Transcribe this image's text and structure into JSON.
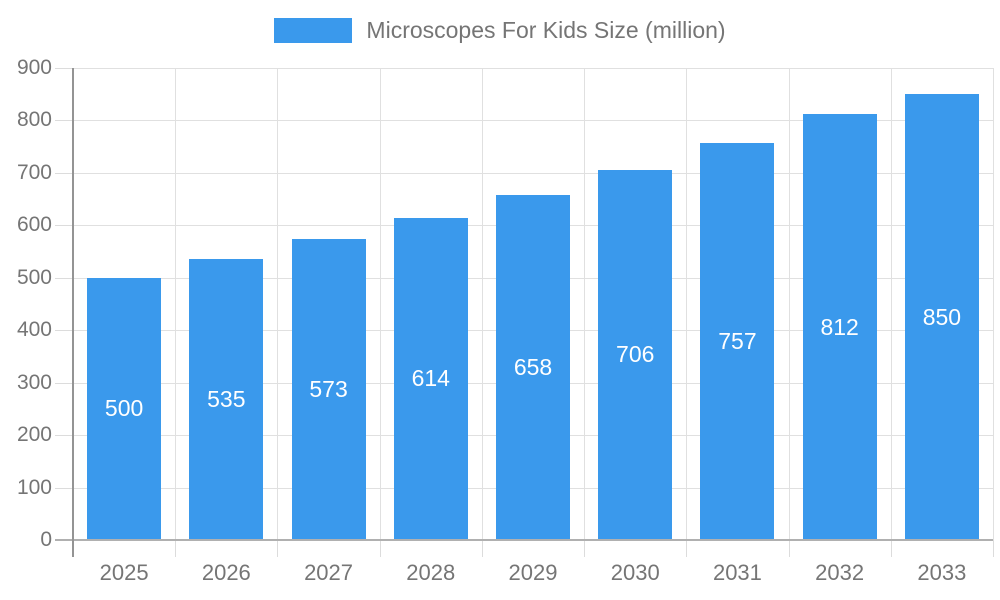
{
  "chart_data": {
    "type": "bar",
    "title": "Microscopes For Kids Size (million)",
    "legend": {
      "label": "Microscopes For Kids Size (million)",
      "position": "top-center"
    },
    "categories": [
      "2025",
      "2026",
      "2027",
      "2028",
      "2029",
      "2030",
      "2031",
      "2032",
      "2033"
    ],
    "series": [
      {
        "name": "Microscopes For Kids Size (million)",
        "values": [
          500,
          535,
          573,
          614,
          658,
          706,
          757,
          812,
          850
        ]
      }
    ],
    "bar_labels": [
      500,
      535,
      573,
      614,
      658,
      706,
      757,
      812,
      850
    ],
    "bar_label_position": "inside-center",
    "xlabel": "",
    "ylabel": "",
    "ylim": [
      0,
      900
    ],
    "yticks": [
      0,
      100,
      200,
      300,
      400,
      500,
      600,
      700,
      800,
      900
    ],
    "grid": "horizontal-and-vertical"
  },
  "colors": {
    "bar": "#3A99EC",
    "bar_label": "#FFFFFF",
    "text": "#757575",
    "grid_line": "#E0E0E0",
    "tick_line": "#DCDCDC",
    "x_axis_line": "#B0B0B0",
    "y_axis_line": "#949494",
    "background": "#FFFFFF"
  }
}
